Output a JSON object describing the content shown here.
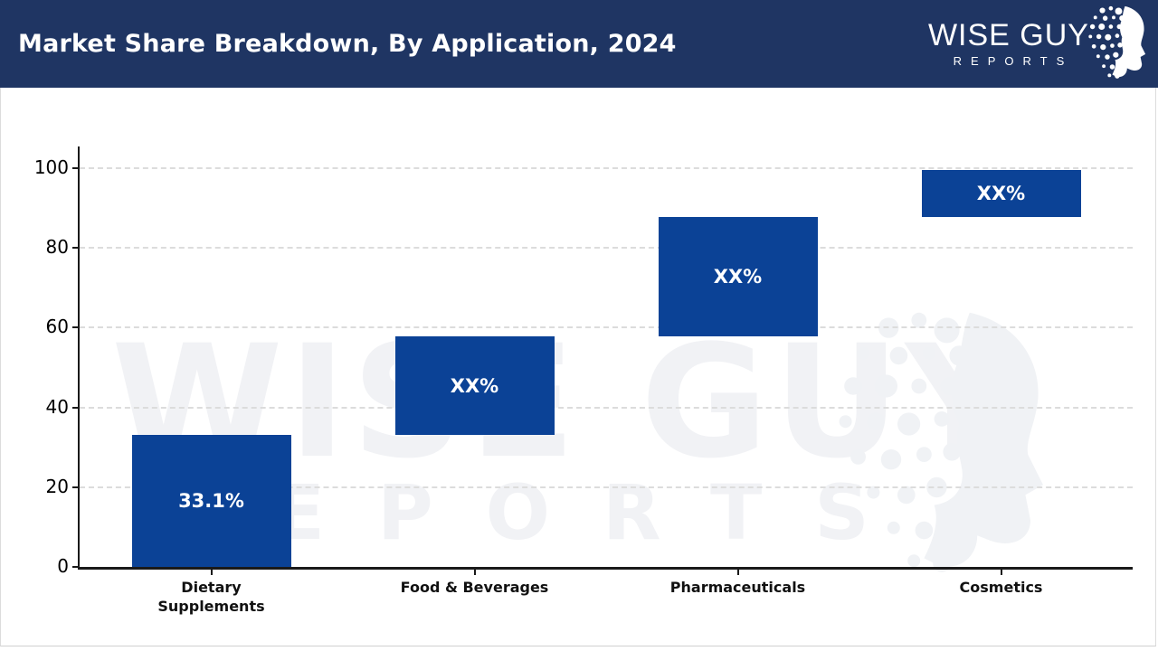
{
  "header": {
    "title": "Market Share Breakdown, By Application, 2024",
    "logo": {
      "line1": "WISE GUY",
      "line2": "REPORTS"
    }
  },
  "watermark": {
    "line1": "WISE GUY",
    "line2": "REPORTS"
  },
  "chart_data": {
    "type": "bar",
    "subtype": "waterfall",
    "title": "Market Share Breakdown, By Application, 2024",
    "xlabel": "",
    "ylabel": "",
    "categories": [
      "Dietary\nSupplements",
      "Food & Beverages",
      "Pharmaceuticals",
      "Cosmetics"
    ],
    "segments": [
      {
        "category": "Dietary Supplements",
        "start": 0,
        "end": 33.1,
        "label": "33.1%"
      },
      {
        "category": "Food & Beverages",
        "start": 33.1,
        "end": 57.8,
        "label": "XX%"
      },
      {
        "category": "Pharmaceuticals",
        "start": 57.8,
        "end": 87.8,
        "label": "XX%"
      },
      {
        "category": "Cosmetics",
        "start": 87.8,
        "end": 99.5,
        "label": "XX%"
      }
    ],
    "y_ticks": [
      0,
      20,
      40,
      60,
      80,
      100
    ],
    "ylim": [
      0,
      107
    ],
    "grid": "horizontal dashed",
    "legend": "none",
    "bar_color": "#0b4296",
    "bar_label_color": "#ffffff",
    "header_color": "#1f3563",
    "gridline_color": "#dcdcdc",
    "axis_color": "#1a1a1a"
  }
}
